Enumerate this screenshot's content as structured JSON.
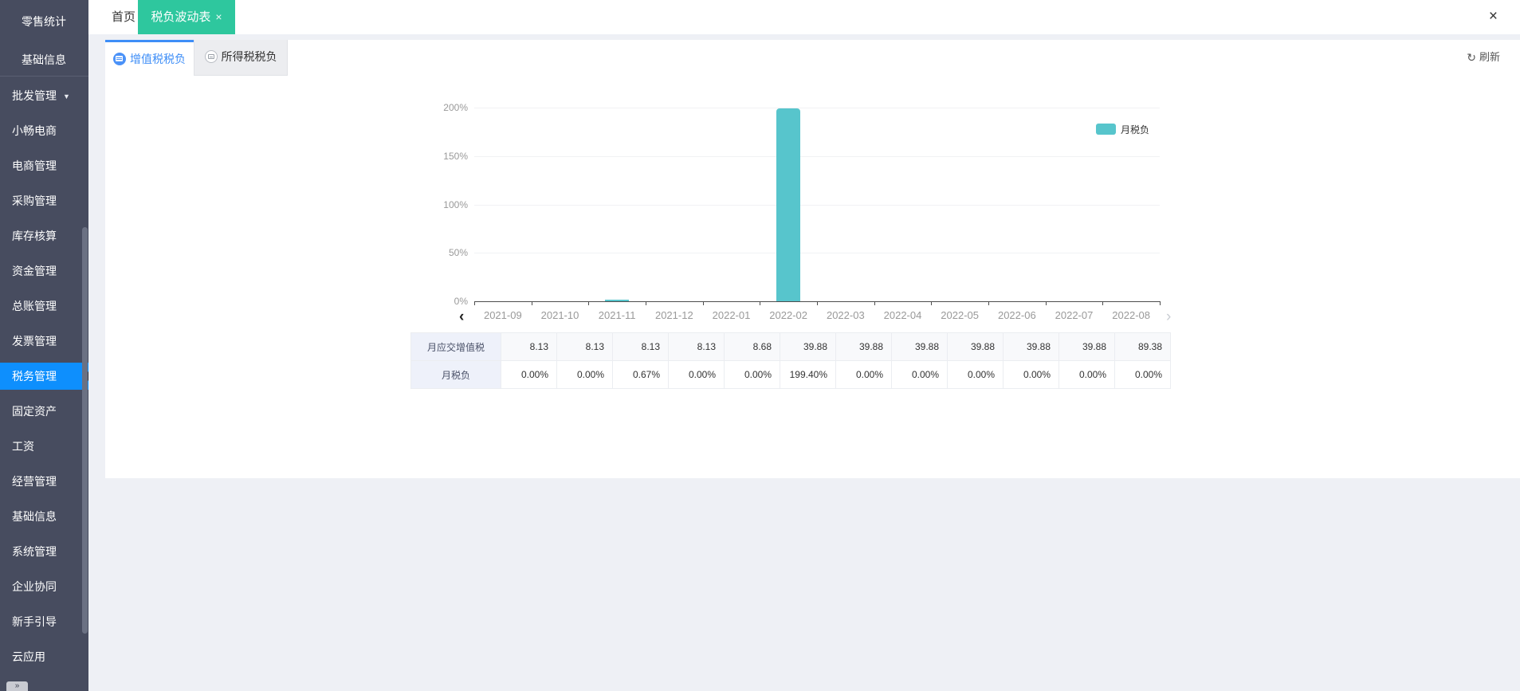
{
  "window": {
    "close_label": "×"
  },
  "topbar": {
    "home_tab_label": "首页",
    "active_page_tab": {
      "label": "税负波动表",
      "close_label": "×"
    }
  },
  "sidebar": {
    "group1": [
      {
        "label": "零售统计"
      },
      {
        "label": "基础信息"
      }
    ],
    "group2": [
      {
        "label": "批发管理",
        "has_dropdown": true
      },
      {
        "label": "小畅电商"
      },
      {
        "label": "电商管理"
      },
      {
        "label": "采购管理"
      },
      {
        "label": "库存核算"
      },
      {
        "label": "资金管理"
      },
      {
        "label": "总账管理"
      },
      {
        "label": "发票管理"
      },
      {
        "label": "税务管理",
        "active": true
      },
      {
        "label": "固定资产"
      },
      {
        "label": "工资"
      },
      {
        "label": "经营管理"
      },
      {
        "label": "基础信息"
      },
      {
        "label": "系统管理"
      },
      {
        "label": "企业协同"
      },
      {
        "label": "新手引导"
      },
      {
        "label": "云应用"
      }
    ],
    "dropdown_arrow": "▼",
    "collapse_glyph": "»"
  },
  "content_tabs": [
    {
      "label": "增值税税负",
      "active": true
    },
    {
      "label": "所得税税负",
      "active": false
    }
  ],
  "toolbar": {
    "refresh_icon": "↻",
    "refresh_label": "刷新"
  },
  "chart_data": {
    "type": "bar",
    "title": "",
    "categories": [
      "2021-09",
      "2021-10",
      "2021-11",
      "2021-12",
      "2022-01",
      "2022-02",
      "2022-03",
      "2022-04",
      "2022-05",
      "2022-06",
      "2022-07",
      "2022-08"
    ],
    "series": [
      {
        "name": "月税负",
        "values": [
          0,
          0,
          0.67,
          0,
          0,
          199.4,
          0,
          0,
          0,
          0,
          0,
          0
        ]
      }
    ],
    "ylim": [
      0,
      200
    ],
    "y_ticks": [
      0,
      50,
      100,
      150,
      200
    ],
    "y_tick_labels": [
      "0%",
      "50%",
      "100%",
      "150%",
      "200%"
    ],
    "grid": true,
    "legend_position": "top-right",
    "bar_color": "#57C5CC",
    "nav_prev": "‹",
    "nav_next": "›"
  },
  "table": {
    "rows": [
      {
        "label": "月应交增值税",
        "values": [
          "8.13",
          "8.13",
          "8.13",
          "8.13",
          "8.68",
          "39.88",
          "39.88",
          "39.88",
          "39.88",
          "39.88",
          "39.88",
          "89.38"
        ]
      },
      {
        "label": "月税负",
        "values": [
          "0.00%",
          "0.00%",
          "0.67%",
          "0.00%",
          "0.00%",
          "199.40%",
          "0.00%",
          "0.00%",
          "0.00%",
          "0.00%",
          "0.00%",
          "0.00%"
        ]
      }
    ]
  },
  "colors": {
    "sidebar_bg": "#474C5F",
    "sidebar_active_bg": "#0E8FFD",
    "page_tab_green": "#2EC79E",
    "accent_blue": "#3E8EF7",
    "bar_teal": "#57C5CC",
    "page_bg": "#EEF0F5",
    "table_label_bg": "#EEF1FA"
  }
}
